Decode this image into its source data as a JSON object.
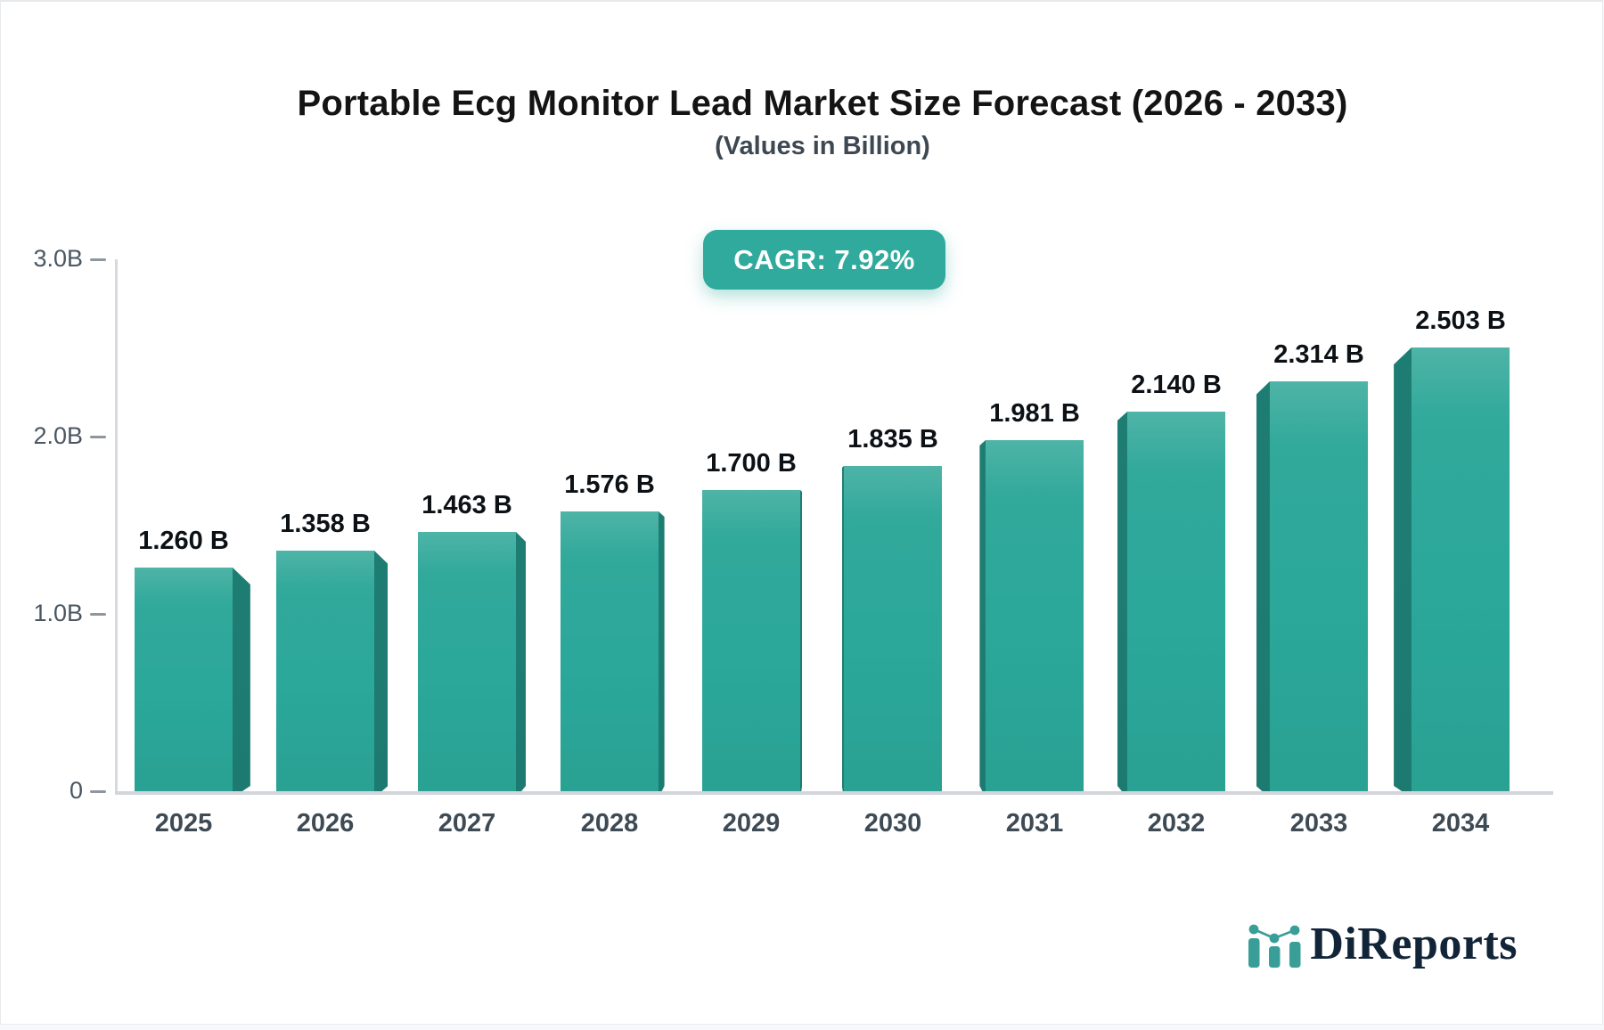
{
  "header": {
    "title": "Portable Ecg Monitor Lead Market Size Forecast (2026 - 2033)",
    "subtitle": "(Values in Billion)"
  },
  "badge": {
    "label": "CAGR: 7.92%",
    "bg": "#2faa9c"
  },
  "watermark": {
    "brand": "DiReports"
  },
  "chart_data": {
    "type": "bar",
    "title": "Portable Ecg Monitor Lead Market Size Forecast (2026 - 2033)",
    "subtitle": "(Values in Billion)",
    "cagr_percent": 7.92,
    "categories": [
      "2025",
      "2026",
      "2027",
      "2028",
      "2029",
      "2030",
      "2031",
      "2032",
      "2033",
      "2034"
    ],
    "values": [
      1.26,
      1.358,
      1.463,
      1.576,
      1.7,
      1.835,
      1.981,
      2.14,
      2.314,
      2.503
    ],
    "bar_labels": [
      "1.260 B",
      "1.358 B",
      "1.463 B",
      "1.576 B",
      "1.700 B",
      "1.835 B",
      "1.981 B",
      "2.140 B",
      "2.314 B",
      "2.503 B"
    ],
    "ylim": [
      0,
      3
    ],
    "yticks": [
      {
        "label": "0",
        "value": 0
      },
      {
        "label": "1.0B",
        "value": 1
      },
      {
        "label": "2.0B",
        "value": 2
      },
      {
        "label": "3.0B",
        "value": 3
      }
    ],
    "legend": "none",
    "grid": "off",
    "colors": {
      "bar_face_top": "#4eb4a7",
      "bar_face_bottom": "#29a193",
      "bar_side": "#1e7d73",
      "axis_line": "#d6d9dd"
    }
  }
}
